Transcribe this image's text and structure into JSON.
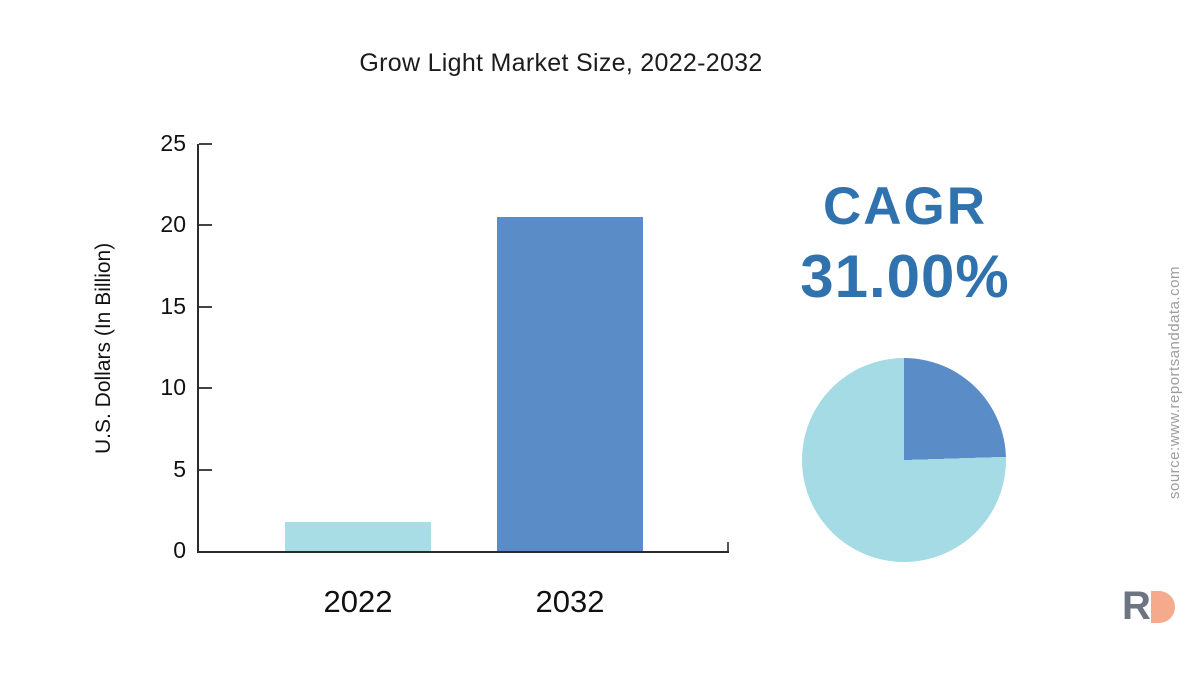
{
  "title": "Grow Light Market Size, 2022-2032",
  "cagr": {
    "label": "CAGR",
    "value": "31.00%"
  },
  "source_text": "source:www.reportsanddata.com",
  "logo": {
    "r": "R"
  },
  "colors": {
    "accent_blue_text": "#2f72ae",
    "bar_2022": "#a8dde6",
    "bar_2032": "#5a8cc8",
    "pie_dark": "#5a8cc8",
    "pie_light": "#a4dbe4",
    "axis": "#2b2b2b",
    "logo_gray": "#6d7581",
    "logo_salmon": "#f5a98d",
    "source_gray": "#9e9e9e"
  },
  "chart_data": [
    {
      "type": "bar",
      "title": "Grow Light Market Size, 2022-2032",
      "categories": [
        "2022",
        "2032"
      ],
      "values": [
        1.8,
        20.5
      ],
      "bar_colors": [
        "#a8dde6",
        "#5a8cc8"
      ],
      "xlabel": "",
      "ylabel": "U.S. Dollars (In Billion)",
      "ylim": [
        0,
        25
      ],
      "yticks": [
        0,
        5,
        10,
        15,
        20,
        25
      ],
      "grid": false,
      "legend": false
    },
    {
      "type": "pie",
      "values": [
        24.5,
        75.5
      ],
      "colors": [
        "#5a8cc8",
        "#a4dbe4"
      ],
      "start_angle_deg": 0,
      "legend": false
    }
  ]
}
